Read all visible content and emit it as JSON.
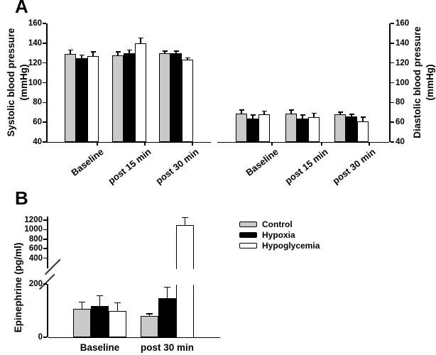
{
  "panels": {
    "a": "A",
    "b": "B"
  },
  "colors": {
    "control_fill": "#c9c9c9",
    "hypoxia_fill": "#000000",
    "hypoglycemia_fill": "#ffffff",
    "axis": "#000000"
  },
  "legend": {
    "position": "right-of-epinephrine-chart",
    "items": [
      {
        "label": "Control",
        "fill": "#c9c9c9"
      },
      {
        "label": "Hypoxia",
        "fill": "#000000"
      },
      {
        "label": "Hypoglycemia",
        "fill": "#ffffff"
      }
    ]
  },
  "chart_data": [
    {
      "id": "systolic-blood-pressure",
      "type": "bar",
      "title": "",
      "ylabel_lines": [
        "Systolic blood pressure",
        "(mmHg)"
      ],
      "xlabel": "",
      "categories": [
        "Baseline",
        "post 15 min",
        "post 30 min"
      ],
      "series": [
        {
          "name": "Control",
          "values": [
            129,
            128,
            130
          ],
          "errors": [
            4,
            3,
            2
          ]
        },
        {
          "name": "Hypoxia",
          "values": [
            125,
            130,
            130
          ],
          "errors": [
            3,
            3,
            2
          ]
        },
        {
          "name": "Hypoglycemia",
          "values": [
            127,
            140,
            123
          ],
          "errors": [
            4,
            5,
            2
          ]
        }
      ],
      "ylim": [
        40,
        160
      ],
      "yticks": [
        160,
        140,
        120,
        100,
        80,
        60,
        40
      ],
      "axis_side": "left",
      "grid": false,
      "error_bars": "upper-cap"
    },
    {
      "id": "diastolic-blood-pressure",
      "type": "bar",
      "title": "",
      "ylabel_lines": [
        "Diastolic blood pressure",
        "(mmHg)"
      ],
      "xlabel": "",
      "categories": [
        "Baseline",
        "post 15 min",
        "post 30 min"
      ],
      "series": [
        {
          "name": "Control",
          "values": [
            69,
            69,
            68
          ],
          "errors": [
            3,
            3,
            2
          ]
        },
        {
          "name": "Hypoxia",
          "values": [
            64,
            64,
            66
          ],
          "errors": [
            3,
            3,
            2
          ]
        },
        {
          "name": "Hypoglycemia",
          "values": [
            68,
            65,
            61
          ],
          "errors": [
            3,
            4,
            4
          ]
        }
      ],
      "ylim": [
        40,
        160
      ],
      "yticks": [
        160,
        140,
        120,
        100,
        80,
        60,
        40
      ],
      "axis_side": "right",
      "grid": false,
      "error_bars": "upper-cap"
    },
    {
      "id": "epinephrine",
      "type": "bar",
      "title": "",
      "ylabel_lines": [
        "Epinephrine (pg/ml)"
      ],
      "xlabel": "",
      "categories": [
        "Baseline",
        "post 30 min"
      ],
      "series": [
        {
          "name": "Control",
          "values": [
            107,
            80
          ],
          "errors": [
            25,
            8
          ]
        },
        {
          "name": "Hypoxia",
          "values": [
            118,
            147
          ],
          "errors": [
            38,
            40
          ]
        },
        {
          "name": "Hypoglycemia",
          "values": [
            99,
            1100
          ],
          "errors": [
            30,
            150
          ]
        }
      ],
      "ylim": [
        0,
        1200
      ],
      "yticks": [
        1200,
        1000,
        800,
        600,
        400,
        200
      ],
      "ytick_zero": "0",
      "axis_break": {
        "location": "y-axis between 0-segment and 200",
        "style": "double-slash",
        "bar_crossing_break": "Hypoglycemia post 30 min"
      },
      "axis_side": "left",
      "grid": false,
      "error_bars": "upper-cap"
    }
  ]
}
